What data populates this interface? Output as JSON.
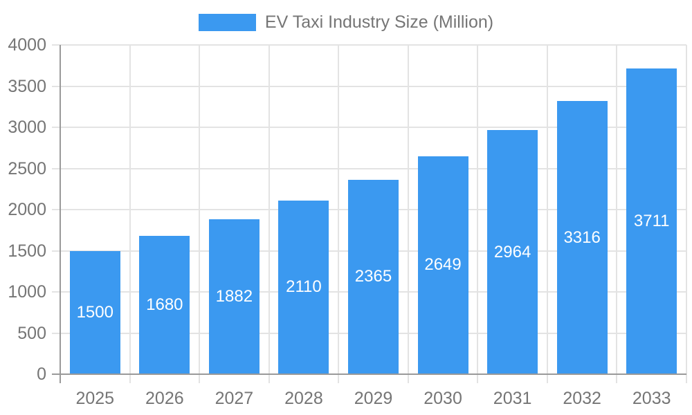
{
  "chart_data": {
    "type": "bar",
    "title": "EV Taxi Industry Size (Million)",
    "categories": [
      "2025",
      "2026",
      "2027",
      "2028",
      "2029",
      "2030",
      "2031",
      "2032",
      "2033"
    ],
    "values": [
      1500,
      1680,
      1882,
      2110,
      2365,
      2649,
      2964,
      3316,
      3711
    ],
    "series_name": "EV Taxi Industry Size (Million)",
    "xlabel": "",
    "ylabel": "",
    "ylim": [
      0,
      4000
    ],
    "ytick_step": 500,
    "ytick_labels": [
      "0",
      "500",
      "1000",
      "1500",
      "2000",
      "2500",
      "3000",
      "3500",
      "4000"
    ],
    "grid": true,
    "legend_position": "top",
    "bar_labels_inside": true,
    "colors": {
      "bar": "#3B99F0",
      "bar_label": "#FFFFFF",
      "grid": "#E3E3E3",
      "axis_line": "#999999",
      "tick_label": "#757575",
      "background": "#FFFFFF"
    }
  }
}
